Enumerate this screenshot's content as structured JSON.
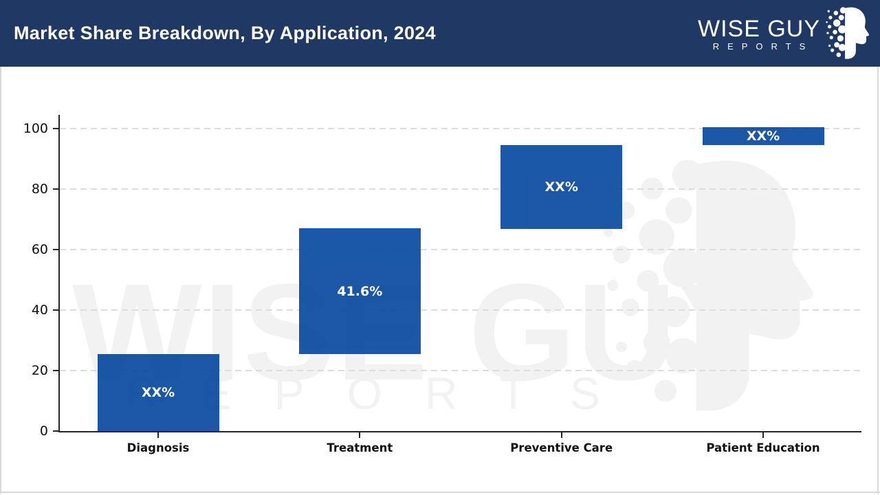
{
  "header": {
    "title": "Market Share Breakdown, By Application, 2024",
    "logo": {
      "line1": "WISE GUY",
      "line2": "REPORTS"
    }
  },
  "watermark": {
    "line1": "WISE GUY",
    "line2": "REPORTS"
  },
  "colors": {
    "header_bg": "#203864",
    "bar": "#0a4b9f",
    "grid": "#dcdcdc",
    "axis": "#262626",
    "tick_label": "#111111",
    "bar_label": "#ffffff",
    "watermark": "#f2f2f2",
    "page_border": "#d9d9d9"
  },
  "chart_data": {
    "type": "bar",
    "subtype": "waterfall-style floating bars",
    "title": "Market Share Breakdown, By Application, 2024",
    "categories": [
      "Diagnosis",
      "Treatment",
      "Preventive Care",
      "Patient Education"
    ],
    "bars": [
      {
        "category": "Diagnosis",
        "start": 0,
        "end": 25.4,
        "label": "XX%"
      },
      {
        "category": "Treatment",
        "start": 25.4,
        "end": 67.0,
        "label": "41.6%"
      },
      {
        "category": "Preventive Care",
        "start": 66.9,
        "end": 94.6,
        "label": "XX%"
      },
      {
        "category": "Patient Education",
        "start": 94.6,
        "end": 100.4,
        "label": "XX%"
      }
    ],
    "yticks": [
      0,
      20,
      40,
      60,
      80,
      100
    ],
    "ylim": [
      0,
      104.5
    ],
    "xlabel": "",
    "ylabel": "",
    "grid": "horizontal dashed",
    "legend": false
  }
}
